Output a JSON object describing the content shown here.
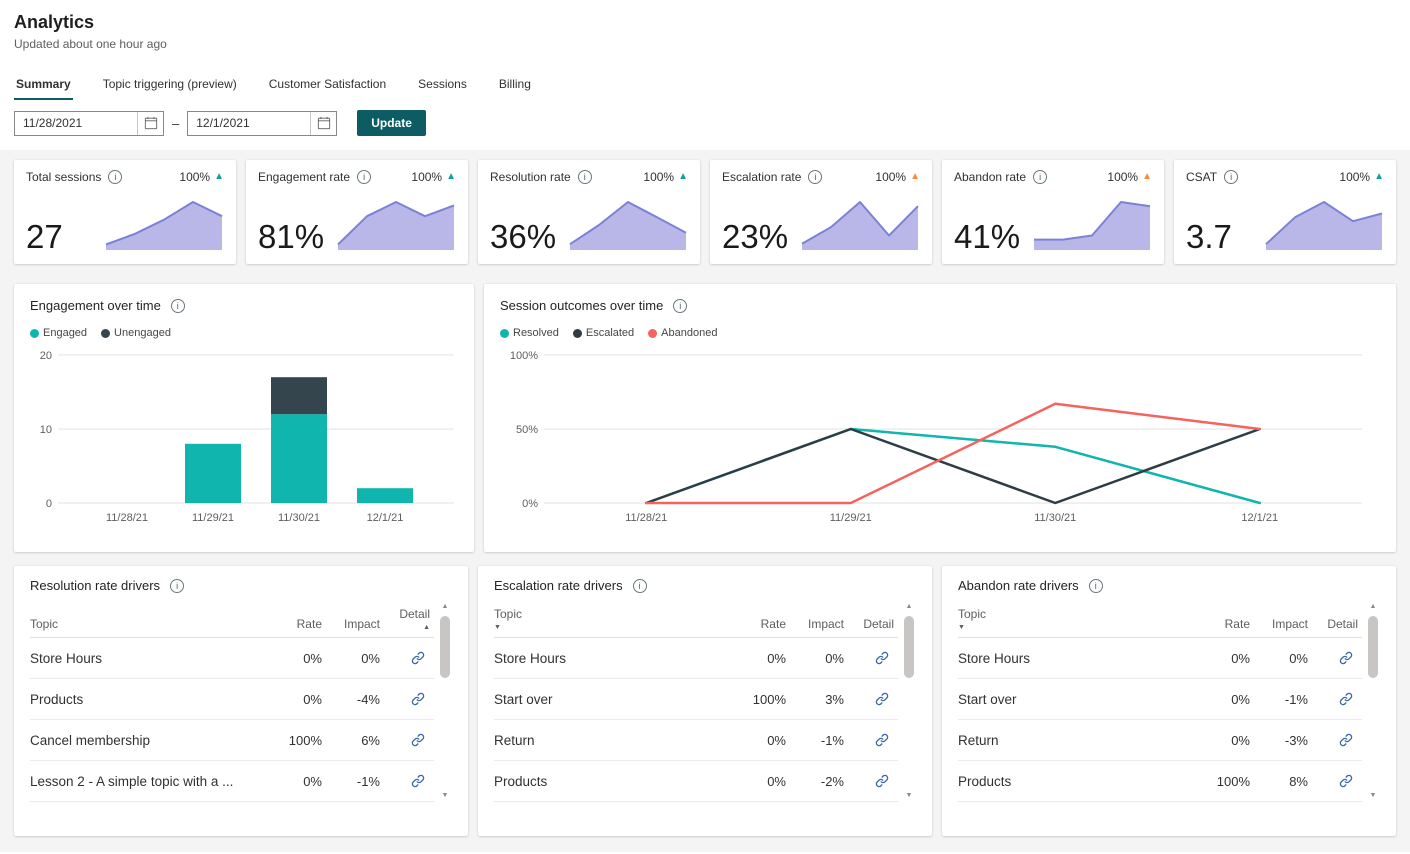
{
  "page": {
    "title": "Analytics",
    "subtitle": "Updated about one hour ago"
  },
  "tabs": [
    {
      "label": "Summary",
      "active": true
    },
    {
      "label": "Topic triggering (preview)",
      "active": false
    },
    {
      "label": "Customer Satisfaction",
      "active": false
    },
    {
      "label": "Sessions",
      "active": false
    },
    {
      "label": "Billing",
      "active": false
    }
  ],
  "filters": {
    "start_date": "11/28/2021",
    "range_separator": "–",
    "end_date": "12/1/2021",
    "update_label": "Update"
  },
  "colors": {
    "accent": "#0e5c63",
    "teal": "#11a3a0",
    "orange": "#f58a3c",
    "spark_stroke": "#7b82d6",
    "spark_fill": "#b9b7e8",
    "link": "#3a66a8"
  },
  "kpis": [
    {
      "title": "Total sessions",
      "change": "100%",
      "direction": "up",
      "trend_color": "#11a3a0",
      "value": "27",
      "spark": [
        1,
        4,
        8,
        13,
        9
      ]
    },
    {
      "title": "Engagement rate",
      "change": "100%",
      "direction": "up",
      "trend_color": "#11a3a0",
      "value": "81%",
      "spark": [
        1,
        9,
        13,
        9,
        12
      ]
    },
    {
      "title": "Resolution rate",
      "change": "100%",
      "direction": "up",
      "trend_color": "#11a3a0",
      "value": "36%",
      "spark": [
        1,
        6,
        12,
        8,
        4
      ]
    },
    {
      "title": "Escalation rate",
      "change": "100%",
      "direction": "up",
      "trend_color": "#f58a3c",
      "value": "23%",
      "spark": [
        1,
        5,
        11,
        3,
        10
      ]
    },
    {
      "title": "Abandon rate",
      "change": "100%",
      "direction": "up",
      "trend_color": "#f58a3c",
      "value": "41%",
      "spark": [
        2,
        2,
        3,
        11,
        10
      ]
    },
    {
      "title": "CSAT",
      "change": "100%",
      "direction": "up",
      "trend_color": "#11a3a0",
      "value": "3.7",
      "spark": [
        1,
        8,
        12,
        7,
        9
      ]
    }
  ],
  "chart_data": [
    {
      "id": "engagement-over-time",
      "type": "bar",
      "stacked": true,
      "title": "Engagement over time",
      "categories": [
        "11/28/21",
        "11/29/21",
        "11/30/21",
        "12/1/21"
      ],
      "series": [
        {
          "name": "Engaged",
          "color": "#10b5ad",
          "values": [
            0,
            8,
            12,
            2
          ]
        },
        {
          "name": "Unengaged",
          "color": "#34454e",
          "values": [
            0,
            0,
            5,
            0
          ]
        }
      ],
      "ylim": [
        0,
        20
      ],
      "yticks": [
        0,
        10,
        20
      ],
      "legend_position": "top",
      "grid": true
    },
    {
      "id": "session-outcomes-over-time",
      "type": "line",
      "title": "Session outcomes over time",
      "categories": [
        "11/28/21",
        "11/29/21",
        "11/30/21",
        "12/1/21"
      ],
      "series": [
        {
          "name": "Resolved",
          "color": "#10b5ad",
          "values": [
            0,
            50,
            38,
            0
          ]
        },
        {
          "name": "Escalated",
          "color": "#2e3d45",
          "values": [
            0,
            50,
            0,
            50
          ]
        },
        {
          "name": "Abandoned",
          "color": "#f4635d",
          "values": [
            0,
            0,
            67,
            50
          ]
        }
      ],
      "ylim": [
        0,
        100
      ],
      "yticks": [
        "0%",
        "50%",
        "100%"
      ],
      "legend_position": "top",
      "grid": true
    }
  ],
  "tables": [
    {
      "title": "Resolution rate drivers",
      "columns": [
        "Topic",
        "Rate",
        "Impact",
        "Detail"
      ],
      "sort": {
        "column": "Detail",
        "direction": "asc"
      },
      "rows": [
        {
          "topic": "Store Hours",
          "rate": "0%",
          "impact": "0%"
        },
        {
          "topic": "Products",
          "rate": "0%",
          "impact": "-4%"
        },
        {
          "topic": "Cancel membership",
          "rate": "100%",
          "impact": "6%"
        },
        {
          "topic": "Lesson 2 - A simple topic with a ...",
          "rate": "0%",
          "impact": "-1%"
        }
      ]
    },
    {
      "title": "Escalation rate drivers",
      "columns": [
        "Topic",
        "Rate",
        "Impact",
        "Detail"
      ],
      "sort": {
        "column": "Topic",
        "direction": "desc"
      },
      "rows": [
        {
          "topic": "Store Hours",
          "rate": "0%",
          "impact": "0%"
        },
        {
          "topic": "Start over",
          "rate": "100%",
          "impact": "3%"
        },
        {
          "topic": "Return",
          "rate": "0%",
          "impact": "-1%"
        },
        {
          "topic": "Products",
          "rate": "0%",
          "impact": "-2%"
        }
      ]
    },
    {
      "title": "Abandon rate drivers",
      "columns": [
        "Topic",
        "Rate",
        "Impact",
        "Detail"
      ],
      "sort": {
        "column": "Topic",
        "direction": "desc"
      },
      "rows": [
        {
          "topic": "Store Hours",
          "rate": "0%",
          "impact": "0%"
        },
        {
          "topic": "Start over",
          "rate": "0%",
          "impact": "-1%"
        },
        {
          "topic": "Return",
          "rate": "0%",
          "impact": "-3%"
        },
        {
          "topic": "Products",
          "rate": "100%",
          "impact": "8%"
        }
      ]
    }
  ]
}
